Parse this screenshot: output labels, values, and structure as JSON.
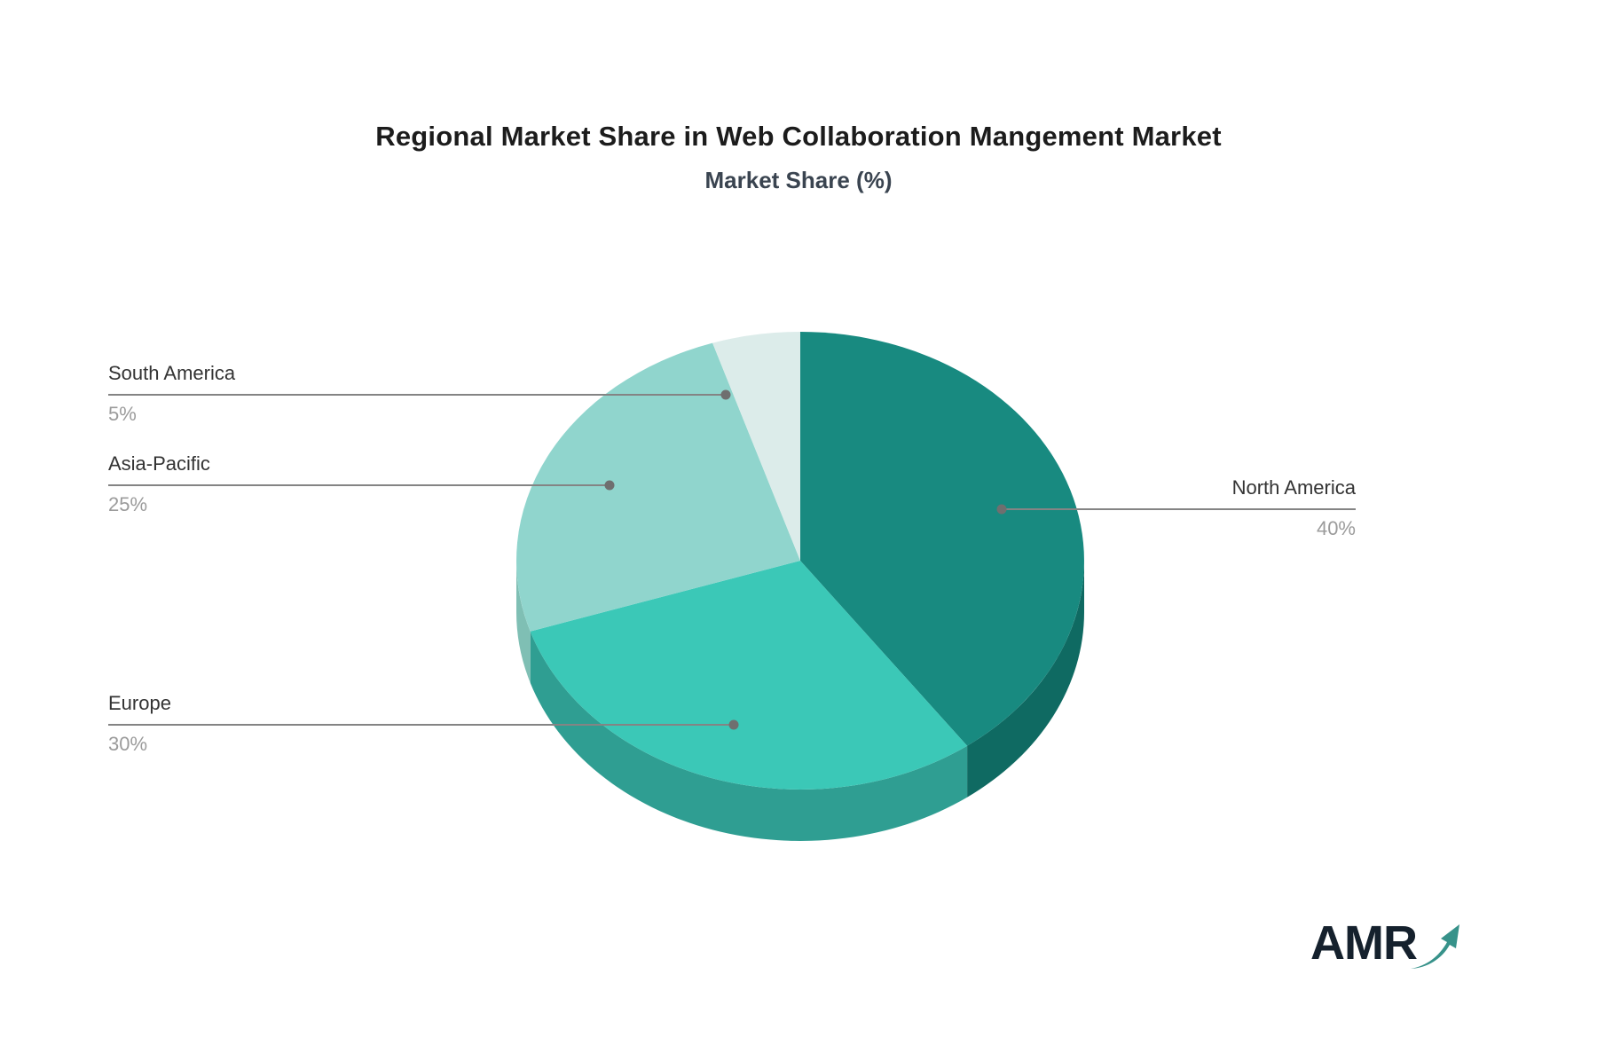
{
  "title": "Regional Market Share in Web Collaboration Mangement Market",
  "subtitle": "Market Share (%)",
  "logo": {
    "text": "AMR"
  },
  "colors": {
    "background": "#ffffff",
    "title_text": "#1c1c1c",
    "subtitle_text": "#3a4450",
    "label_name": "#333333",
    "label_value": "#9b9b9b",
    "leader_line": "#848484",
    "leader_dot": "#6f6f6f",
    "logo_text": "#15212d",
    "logo_arrow": "#37928a"
  },
  "chart_data": {
    "type": "pie",
    "style": "3d",
    "title": "Regional Market Share in Web Collaboration Mangement Market",
    "subtitle": "Market Share (%)",
    "unit": "%",
    "categories": [
      "North America",
      "Europe",
      "Asia-Pacific",
      "South America"
    ],
    "values": [
      40,
      30,
      25,
      5
    ],
    "value_labels": [
      "40%",
      "30%",
      "25%",
      "5%"
    ],
    "slice_colors": [
      "#188a80",
      "#3bc8b7",
      "#90d5cd",
      "#dcecea"
    ],
    "slice_side_colors": [
      "#0f6a62",
      "#2f9e92",
      "#7fbfb4",
      "#c5ded9"
    ],
    "start_angle_deg": 0,
    "direction": "clockwise",
    "legend": "none",
    "grid": false
  }
}
